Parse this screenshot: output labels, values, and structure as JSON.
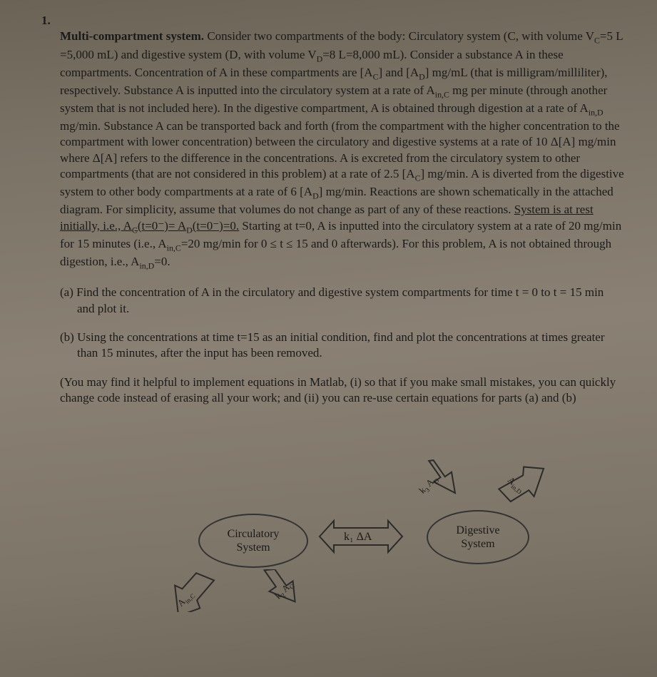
{
  "number": "1.",
  "title": "Multi-compartment system.",
  "body": " Consider two compartments of the body: Circulatory system (C, with volume V_C=5 L =5,000 mL) and digestive system (D, with volume V_D=8 L=8,000 mL). Consider a substance A in these compartments. Concentration of A in these compartments are [A_C] and [A_D] mg/mL (that is milligram/milliliter), respectively. Substance A is inputted into the circulatory system at a rate of A_in,C mg per minute (through another system that is not included here). In the digestive compartment, A is obtained through digestion at a rate of A_in,D mg/min. Substance A can be transported back and forth (from the compartment with the higher concentration to the compartment with lower concentration) between the circulatory and digestive systems at a rate of 10 Δ[A] mg/min where Δ[A] refers to the difference in the concentrations. A is excreted from the circulatory system to other compartments (that are not considered in this problem) at a rate of 2.5 [A_C] mg/min. A is diverted from the digestive system to other body compartments at a rate of 6 [A_D] mg/min. Reactions are shown schematically in the attached diagram. For simplicity, assume that volumes do not change as part of any of these reactions. ",
  "underlined": "System is at rest initially, i.e., A_C(t=0⁻)= A_D(t=0⁻)=0.",
  "body2": " Starting at t=0, A is inputted into the circulatory system at a rate of 20 mg/min for 15 minutes (i.e., A_in,C=20 mg/min for 0 ≤ t ≤ 15 and 0 afterwards). For this problem, A is not obtained through digestion, i.e., A_in,D=0.",
  "part_a": "(a) Find the concentration of A in the circulatory and digestive system compartments for time t = 0 to t = 15 min and plot it.",
  "part_b": "(b) Using the concentrations at time t=15 as an initial condition, find and plot the concentrations at times greater than 15 minutes, after the input has been removed.",
  "note": "(You may find it helpful to implement equations in Matlab, (i) so that if you make small mistakes, you can quickly change code instead of erasing all your work; and (ii) you can re-use certain equations for parts (a) and (b)",
  "diagram": {
    "circ_label": "Circulatory\nSystem",
    "dig_label": "Digestive\nSystem",
    "mid_label": "k₁ ΔA",
    "ainc": "A_in,C",
    "aind": "A_in,D",
    "k2ac": "k₂ A_C",
    "k3ad": "k₃ A_D",
    "stroke": "#2b2b2b",
    "fontsize": 16
  }
}
